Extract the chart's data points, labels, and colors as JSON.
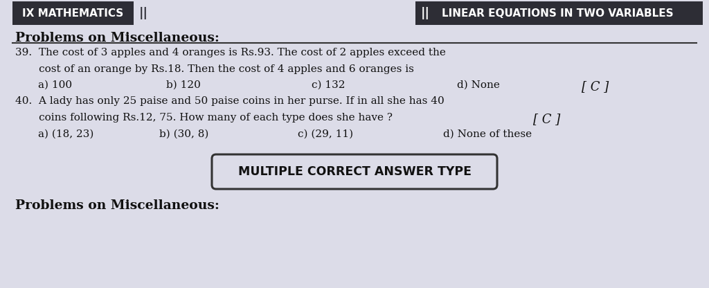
{
  "bg_color": "#dcdce8",
  "header_bg": "#2d2d35",
  "header_text_left": "IX MATHEMATICS",
  "header_text_right": "LINEAR EQUATIONS IN TWO VARIABLES",
  "header_separator": "||",
  "section_title": "Problems on Miscellaneous:",
  "text_color": "#111111",
  "box_label": "MULTIPLE CORRECT ANSWER TYPE",
  "bottom_title": "Problems on Miscellaneous:",
  "figsize": [
    10.24,
    4.16
  ],
  "dpi": 100,
  "q39_line1": "39.  The cost of 3 apples and 4 oranges is Rs.93. The cost of 2 apples exceed the",
  "q39_line2": "       cost of an orange by Rs.18. Then the cost of 4 apples and 6 oranges is",
  "q40_line1": "40.  A lady has only 25 paise and 50 paise coins in her purse. If in all she has 40",
  "q40_line2": "       coins following Rs.12, 75. How many of each type does she have ?",
  "q39_a": "a) 100",
  "q39_b": "b) 120",
  "q39_c": "c) 132",
  "q39_d": "d) None",
  "q39_ans": "[ C ]",
  "q40_a": "a) (18, 23)",
  "q40_b": "b) (30, 8)",
  "q40_c": "c) (29, 11)",
  "q40_d": "d) None of these",
  "q40_ans": "[ C ]"
}
